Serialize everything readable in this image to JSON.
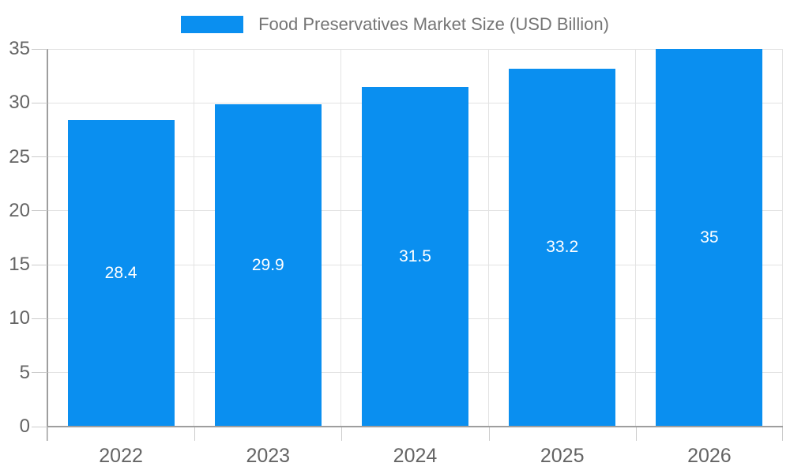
{
  "chart_data": {
    "type": "bar",
    "title": "Food Preservatives Market Size (USD Billion)",
    "categories": [
      "2022",
      "2023",
      "2024",
      "2025",
      "2026"
    ],
    "values": [
      28.4,
      29.9,
      31.5,
      33.2,
      35
    ],
    "value_labels": [
      "28.4",
      "29.9",
      "31.5",
      "33.2",
      "35"
    ],
    "xlabel": "",
    "ylabel": "",
    "ylim": [
      0,
      35
    ],
    "y_ticks": [
      0,
      5,
      10,
      15,
      20,
      25,
      30,
      35
    ],
    "grid": "both",
    "legend_position": "top-center",
    "colors": {
      "bar": "#0a8ff0",
      "value_label": "#ffffff",
      "legend_text": "#757575",
      "axis_text": "#646464",
      "gridline": "#e3e3e3",
      "axis_line": "#9e9e9e",
      "tick_mark": "#cccccc"
    }
  }
}
